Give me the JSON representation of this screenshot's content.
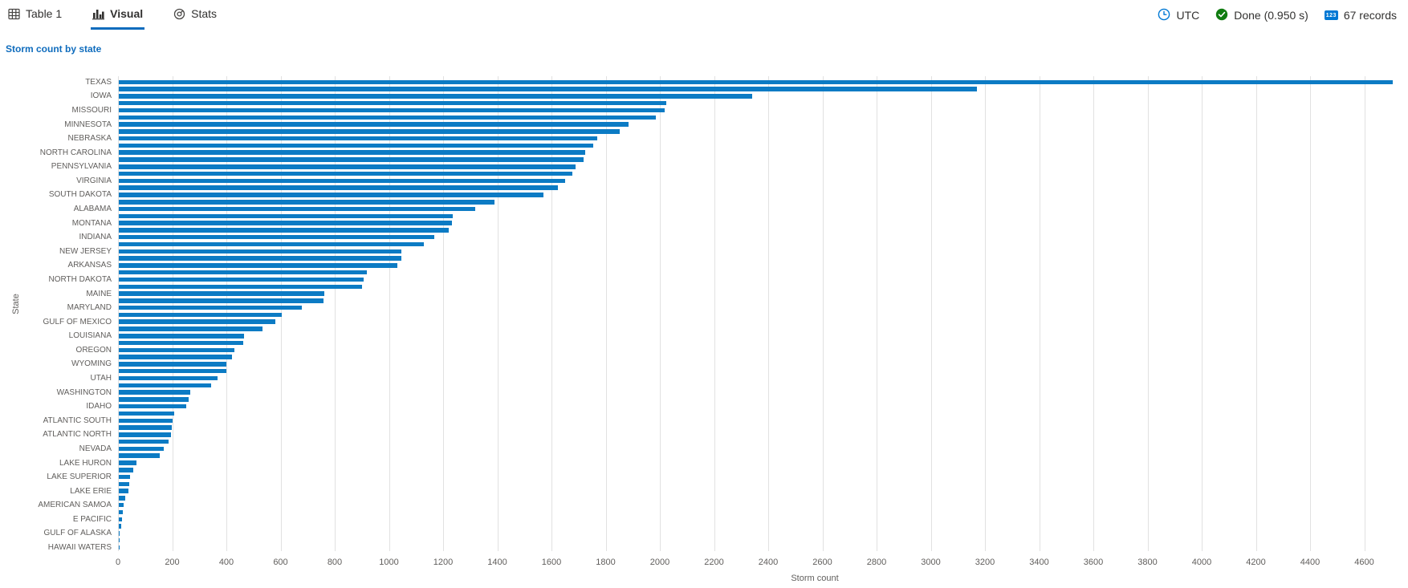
{
  "tabs": [
    {
      "label": "Table 1",
      "icon": "table-grid-icon",
      "active": false
    },
    {
      "label": "Visual",
      "icon": "bar-chart-icon",
      "active": true
    },
    {
      "label": "Stats",
      "icon": "gauge-icon",
      "active": false
    }
  ],
  "status": {
    "timezone": "UTC",
    "done": "Done (0.950 s)",
    "records": "67 records",
    "records_badge": "123"
  },
  "colors": {
    "accent_blue": "#0f6cbd",
    "bar_blue": "#0c7bc4",
    "status_icon_blue": "#0078d4",
    "success_green": "#107c10",
    "text_dark": "#323130",
    "text_gray": "#605e5c",
    "gridline": "#e1e1e1"
  },
  "chart_data": {
    "type": "bar",
    "orientation": "horizontal",
    "title": "Storm count by state",
    "xlabel": "Storm count",
    "ylabel": "State",
    "xlim": [
      0,
      4600
    ],
    "x_tick_step": 200,
    "x_ticks": [
      0,
      200,
      400,
      600,
      800,
      1000,
      1200,
      1400,
      1600,
      1800,
      2000,
      2200,
      2400,
      2600,
      2800,
      3000,
      3200,
      3400,
      3600,
      3800,
      4000,
      4200,
      4400,
      4600
    ],
    "grid": true,
    "legend": "none",
    "note_unlabeled_bars": "axis shows a label for every other bar only",
    "bars": [
      {
        "label": "TEXAS",
        "value": 4701
      },
      {
        "label": "",
        "value": 3166
      },
      {
        "label": "IOWA",
        "value": 2337
      },
      {
        "label": "",
        "value": 2022
      },
      {
        "label": "MISSOURI",
        "value": 2016
      },
      {
        "label": "",
        "value": 1983
      },
      {
        "label": "MINNESOTA",
        "value": 1881
      },
      {
        "label": "",
        "value": 1850
      },
      {
        "label": "NEBRASKA",
        "value": 1766
      },
      {
        "label": "",
        "value": 1750
      },
      {
        "label": "NORTH CAROLINA",
        "value": 1721
      },
      {
        "label": "",
        "value": 1716
      },
      {
        "label": "PENNSYLVANIA",
        "value": 1687
      },
      {
        "label": "",
        "value": 1674
      },
      {
        "label": "VIRGINIA",
        "value": 1647
      },
      {
        "label": "",
        "value": 1622
      },
      {
        "label": "SOUTH DAKOTA",
        "value": 1567
      },
      {
        "label": "",
        "value": 1386
      },
      {
        "label": "ALABAMA",
        "value": 1315
      },
      {
        "label": "",
        "value": 1232
      },
      {
        "label": "MONTANA",
        "value": 1230
      },
      {
        "label": "",
        "value": 1218
      },
      {
        "label": "INDIANA",
        "value": 1164
      },
      {
        "label": "",
        "value": 1125
      },
      {
        "label": "NEW JERSEY",
        "value": 1044
      },
      {
        "label": "",
        "value": 1042
      },
      {
        "label": "ARKANSAS",
        "value": 1028
      },
      {
        "label": "",
        "value": 916
      },
      {
        "label": "NORTH DAKOTA",
        "value": 905
      },
      {
        "label": "",
        "value": 898
      },
      {
        "label": "MAINE",
        "value": 757
      },
      {
        "label": "",
        "value": 755
      },
      {
        "label": "MARYLAND",
        "value": 674
      },
      {
        "label": "",
        "value": 601
      },
      {
        "label": "GULF OF MEXICO",
        "value": 577
      },
      {
        "label": "",
        "value": 531
      },
      {
        "label": "LOUISIANA",
        "value": 463
      },
      {
        "label": "",
        "value": 459
      },
      {
        "label": "OREGON",
        "value": 427
      },
      {
        "label": "",
        "value": 418
      },
      {
        "label": "WYOMING",
        "value": 397
      },
      {
        "label": "",
        "value": 396
      },
      {
        "label": "UTAH",
        "value": 363
      },
      {
        "label": "",
        "value": 341
      },
      {
        "label": "WASHINGTON",
        "value": 264
      },
      {
        "label": "",
        "value": 259
      },
      {
        "label": "IDAHO",
        "value": 250
      },
      {
        "label": "",
        "value": 203
      },
      {
        "label": "ATLANTIC SOUTH",
        "value": 197
      },
      {
        "label": "",
        "value": 195
      },
      {
        "label": "ATLANTIC NORTH",
        "value": 192
      },
      {
        "label": "",
        "value": 184
      },
      {
        "label": "NEVADA",
        "value": 166
      },
      {
        "label": "",
        "value": 152
      },
      {
        "label": "LAKE HURON",
        "value": 66
      },
      {
        "label": "",
        "value": 54
      },
      {
        "label": "LAKE SUPERIOR",
        "value": 40
      },
      {
        "label": "",
        "value": 37
      },
      {
        "label": "LAKE ERIE",
        "value": 34
      },
      {
        "label": "",
        "value": 24
      },
      {
        "label": "AMERICAN SAMOA",
        "value": 18
      },
      {
        "label": "",
        "value": 15
      },
      {
        "label": "E PACIFIC",
        "value": 12
      },
      {
        "label": "",
        "value": 10
      },
      {
        "label": "GULF OF ALASKA",
        "value": 3
      },
      {
        "label": "",
        "value": 2
      },
      {
        "label": "HAWAII WATERS",
        "value": 1
      }
    ]
  }
}
